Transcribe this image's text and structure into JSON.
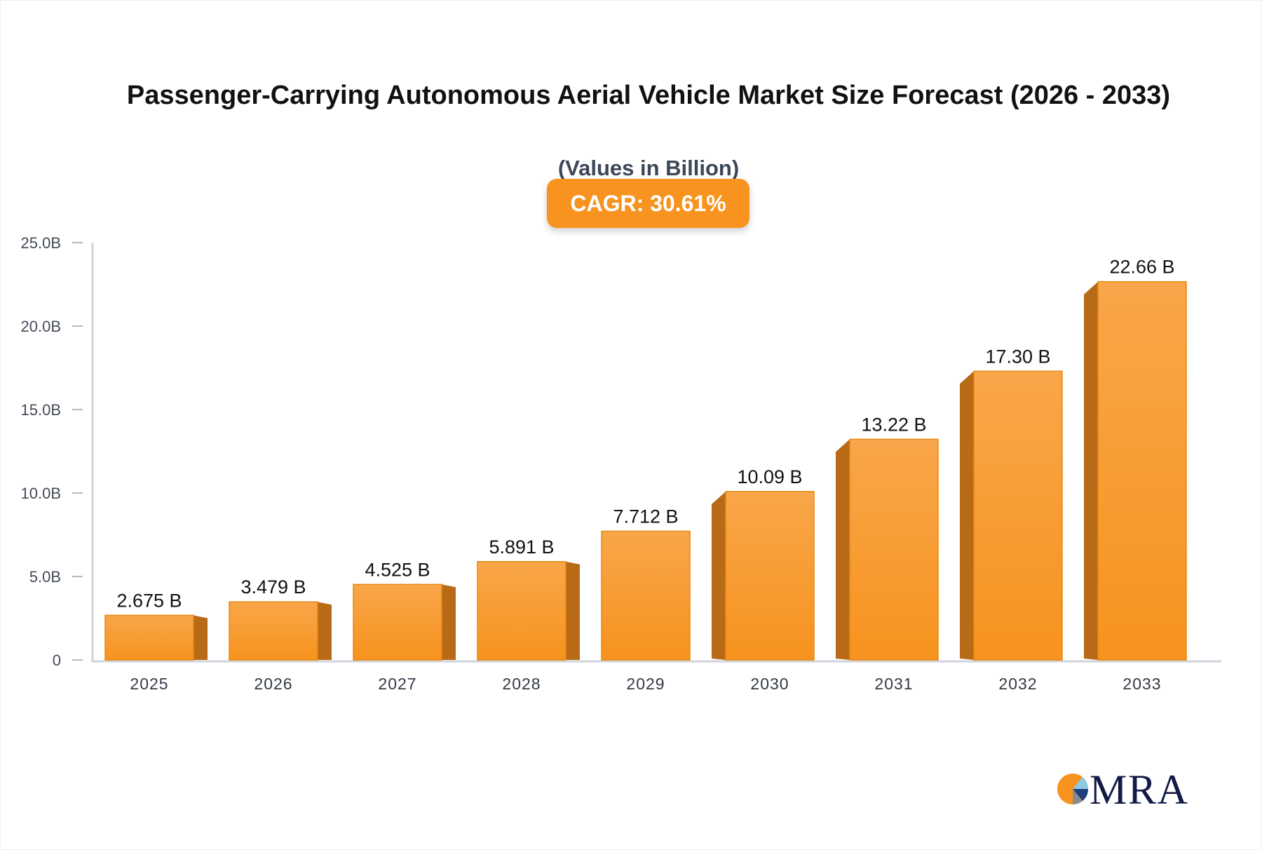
{
  "chart_data": {
    "type": "bar",
    "title": "Passenger-Carrying Autonomous Aerial Vehicle Market Size Forecast (2026 - 2033)",
    "subtitle": "(Values in Billion)",
    "annotation": "CAGR: 30.61%",
    "categories": [
      "2025",
      "2026",
      "2027",
      "2028",
      "2029",
      "2030",
      "2031",
      "2032",
      "2033"
    ],
    "values": [
      2.675,
      3.479,
      4.525,
      5.891,
      7.712,
      10.09,
      13.22,
      17.3,
      22.66
    ],
    "data_labels": [
      "2.675 B",
      "3.479 B",
      "4.525 B",
      "5.891 B",
      "7.712 B",
      "10.09 B",
      "13.22 B",
      "17.30 B",
      "22.66 B"
    ],
    "ylim": [
      0,
      25
    ],
    "yticks": [
      0,
      5,
      10,
      15,
      20,
      25
    ],
    "ytick_labels": [
      "0",
      "5.0B",
      "10.0B",
      "15.0B",
      "20.0B",
      "25.0B"
    ],
    "xlabel": "",
    "ylabel": "",
    "grid": false,
    "colors": {
      "bar": "#f7931e",
      "bar_top": "#f8a64a",
      "bar_side": "#b86a16",
      "axis": "#d0d3da",
      "cagr_badge": "#f7931e"
    }
  },
  "logo": {
    "text": "MRA"
  }
}
